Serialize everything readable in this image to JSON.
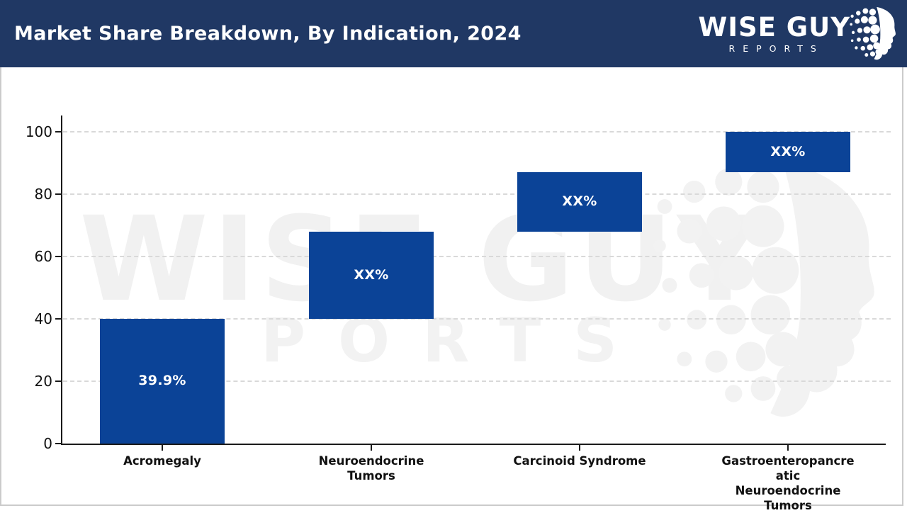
{
  "header": {
    "title": "Market Share Breakdown, By Indication, 2024",
    "logo": {
      "line1": "WISE GUY",
      "line2": "REPORTS",
      "icon": "dotted-face-profile"
    }
  },
  "watermark": {
    "text_top": "WISE GUY",
    "text_bottom": "PORTS",
    "icon": "dotted-face-profile",
    "color": "#f1f1f1"
  },
  "chart_data": {
    "type": "bar",
    "subtype": "waterfall",
    "title": "Market Share Breakdown, By Indication, 2024",
    "categories": [
      "Acromegaly",
      "Neuroendocrine Tumors",
      "Carcinoid Syndrome",
      "Gastroenteropancreatic Neuroendocrine Tumors"
    ],
    "category_display_lines": [
      [
        "Acromegaly"
      ],
      [
        "Neuroendocrine",
        "Tumors"
      ],
      [
        "Carcinoid Syndrome"
      ],
      [
        "Gastroenteropancre",
        "atic",
        "Neuroendocrine",
        "Tumors"
      ]
    ],
    "bars": [
      {
        "from": 0,
        "to": 39.9,
        "label": "39.9%"
      },
      {
        "from": 39.9,
        "to": 68,
        "label": "XX%"
      },
      {
        "from": 68,
        "to": 87,
        "label": "XX%"
      },
      {
        "from": 87,
        "to": 100,
        "label": "XX%"
      }
    ],
    "yticks": [
      0,
      20,
      40,
      60,
      80,
      100
    ],
    "ylim": [
      0,
      105
    ],
    "xlabel": "",
    "ylabel": "",
    "grid": "horizontal-dashed",
    "legend": "none",
    "bar_color": "#0b4397",
    "bar_label_color": "#ffffff",
    "axis_color": "#1a1a1a",
    "grid_color": "#d9d9d9"
  }
}
